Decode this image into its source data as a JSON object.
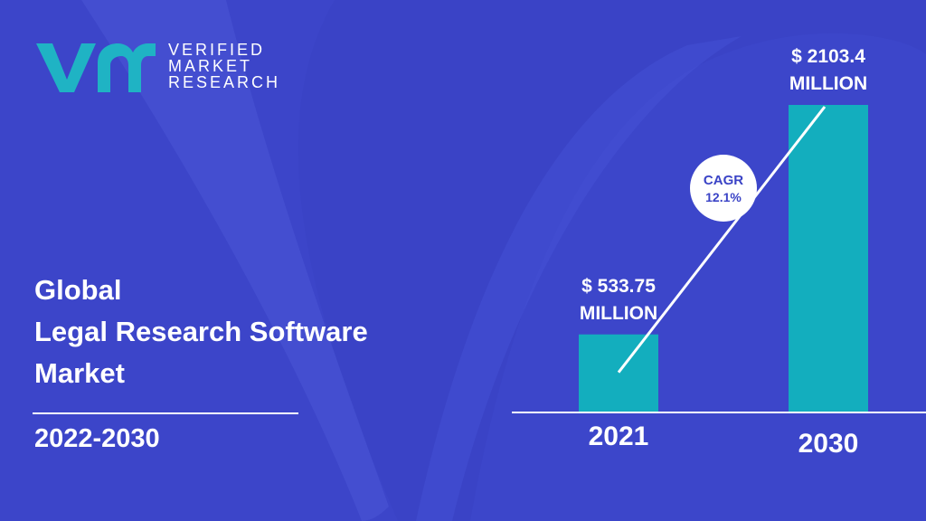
{
  "brand": {
    "line1": "VERIFIED",
    "line2": "MARKET",
    "line3": "RESEARCH",
    "logo_icon": "vmr-logo-icon",
    "logo_color": "#1fb3c4"
  },
  "title": {
    "line1": "Global",
    "line2": "Legal Research Software",
    "line3": "Market"
  },
  "period": "2022-2030",
  "colors": {
    "background": "#3a43c6",
    "bar": "#13aebe",
    "text": "#ffffff"
  },
  "chart_data": {
    "type": "bar",
    "categories": [
      "2021",
      "2030"
    ],
    "values": [
      533.75,
      2103.4
    ],
    "data_labels": [
      [
        "$ 533.75",
        "MILLION"
      ],
      [
        "$ 2103.4",
        "MILLION"
      ]
    ],
    "title": "",
    "xlabel": "",
    "ylabel": "",
    "grid": false,
    "annotation": {
      "title": "CAGR",
      "value": "12.1%"
    }
  }
}
